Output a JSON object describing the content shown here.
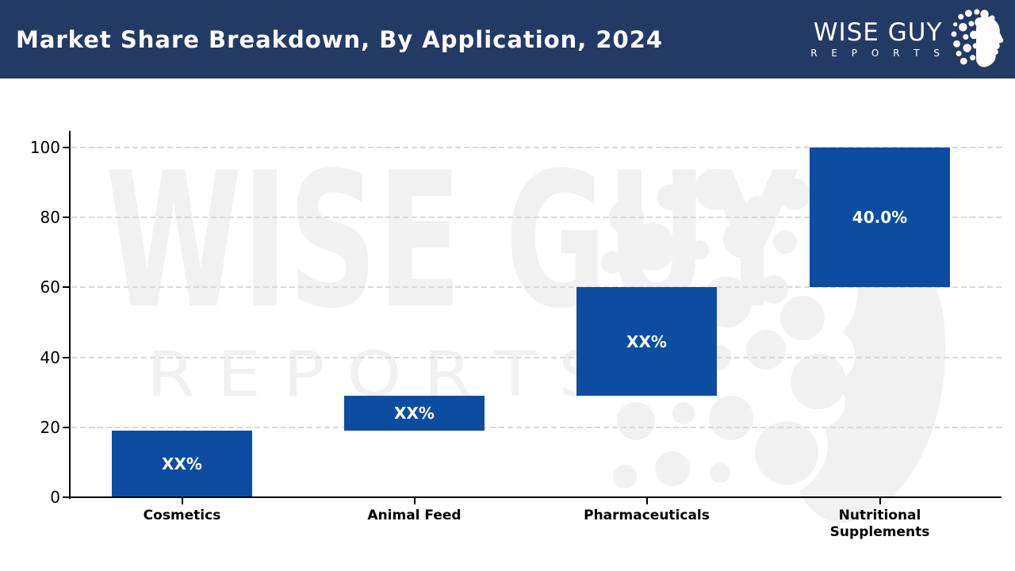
{
  "header": {
    "title": "Market Share Breakdown, By Application, 2024",
    "logo": {
      "line1": "WISE GUY",
      "line2": "R E P O R T S"
    }
  },
  "watermark": {
    "line1": "WISE GUY",
    "line2": "R E P O R T S"
  },
  "chart_data": {
    "type": "bar",
    "subtype": "waterfall",
    "title": "Market Share Breakdown, By Application, 2024",
    "categories": [
      "Cosmetics",
      "Animal Feed",
      "Pharmaceuticals",
      "Nutritional\nSupplements"
    ],
    "values": [
      19,
      10,
      31,
      40
    ],
    "segment_starts": [
      0,
      19,
      29,
      60
    ],
    "segment_ends": [
      19,
      29,
      60,
      100
    ],
    "bar_labels": [
      "XX%",
      "XX%",
      "XX%",
      "40.0%"
    ],
    "yticks": [
      0,
      20,
      40,
      60,
      80,
      100
    ],
    "ylim": [
      0,
      105
    ],
    "xlabel": "",
    "ylabel": "",
    "grid": "horizontal-dashed",
    "legend": "none",
    "bar_color": "#0c4da2"
  },
  "colors": {
    "header_bg": "#233a64",
    "bar": "#0c4da2",
    "grid": "#d9d9d9",
    "watermark": "#f1f1f2",
    "axis": "#000000",
    "frame_border": "#d8d8d8"
  }
}
